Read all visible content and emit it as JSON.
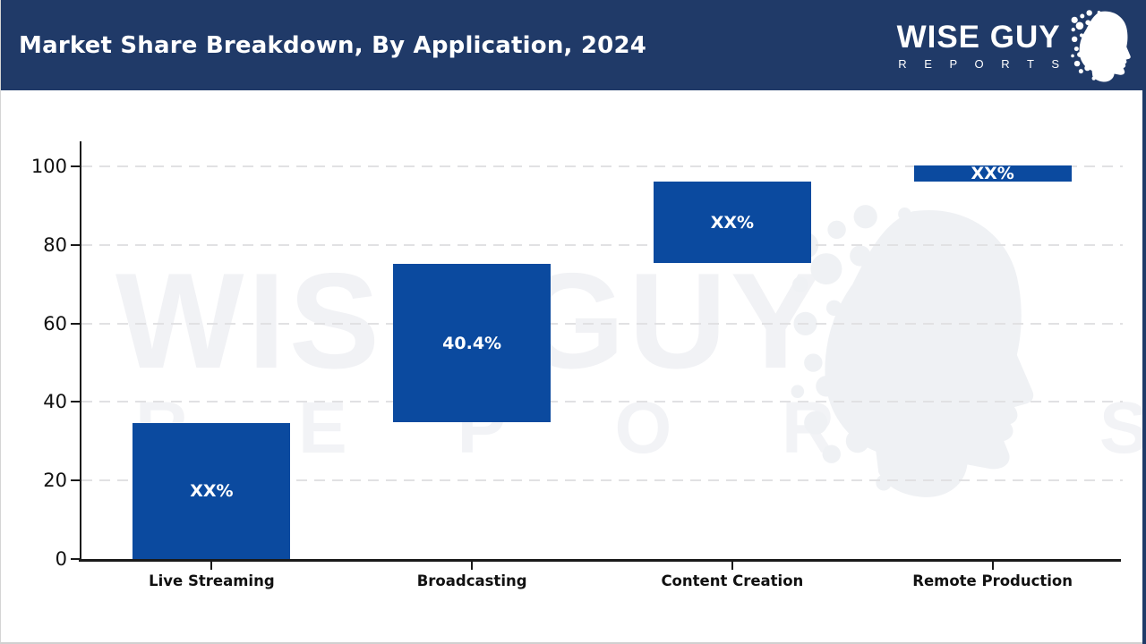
{
  "header": {
    "title": "Market Share Breakdown, By Application, 2024",
    "background_color": "#203a68",
    "logo": {
      "line1": "WISE GUY",
      "line2": "R E P O R T S"
    }
  },
  "watermark": {
    "line1": "WISE GUY",
    "line2": "R E P O R T S"
  },
  "accent_stripe_color": "#203a68",
  "chart_data": {
    "type": "bar",
    "subtype": "waterfall",
    "title": "Market Share Breakdown, By Application, 2024",
    "xlabel": "",
    "ylabel": "",
    "categories": [
      "Live Streaming",
      "Broadcasting",
      "Content Creation",
      "Remote Production"
    ],
    "segments": [
      {
        "category": "Live Streaming",
        "start": 0,
        "end": 34.7,
        "label": "XX%"
      },
      {
        "category": "Broadcasting",
        "start": 34.8,
        "end": 75.2,
        "label": "40.4%"
      },
      {
        "category": "Content Creation",
        "start": 75.3,
        "end": 96.2,
        "label": "XX%"
      },
      {
        "category": "Remote Production",
        "start": 96.2,
        "end": 100.2,
        "label": "XX%"
      }
    ],
    "ylim": [
      0,
      107
    ],
    "yticks": [
      0,
      20,
      40,
      60,
      80,
      100
    ],
    "grid": "horizontal-dashed",
    "legend": "none",
    "bar_color": "#0b4a9f",
    "bar_label_color": "#ffffff"
  }
}
